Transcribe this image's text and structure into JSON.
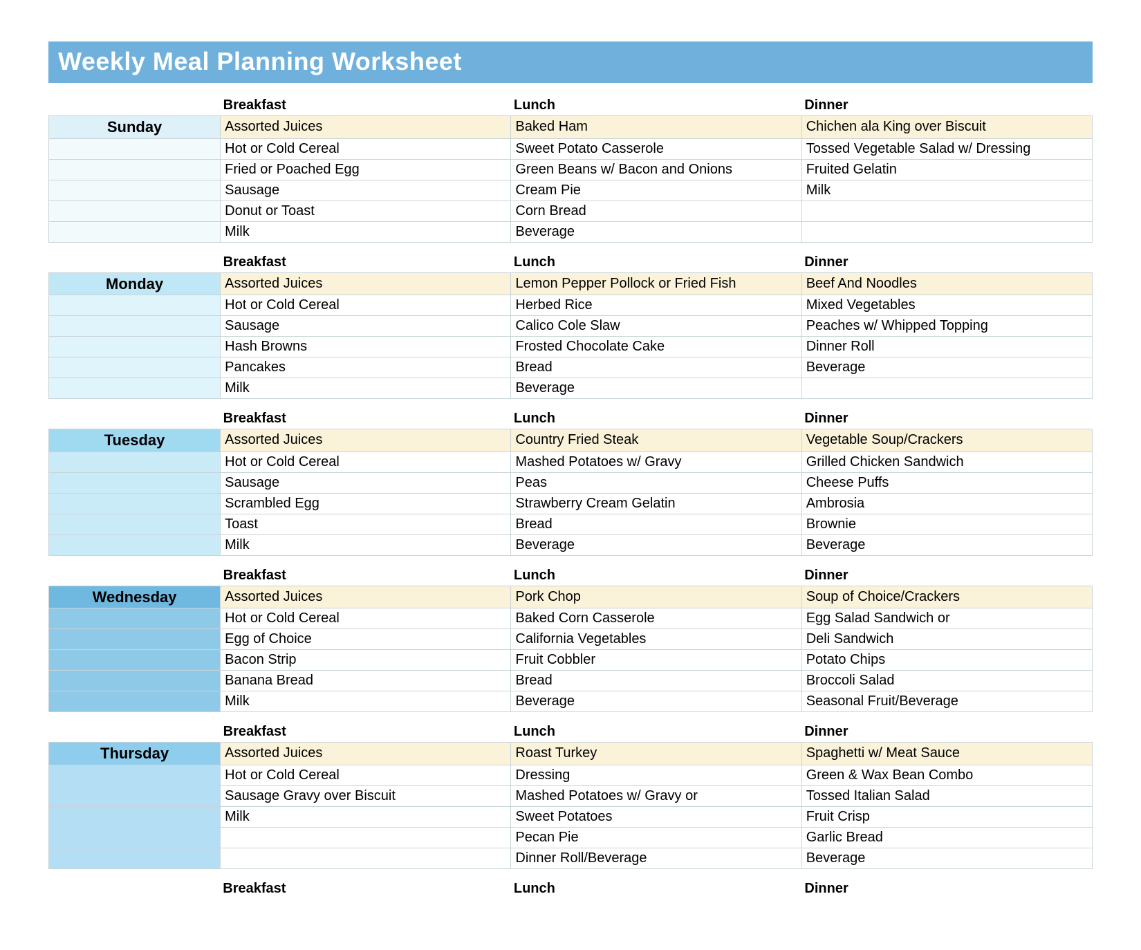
{
  "title": "Weekly Meal Planning Worksheet",
  "columns": [
    "Breakfast",
    "Lunch",
    "Dinner"
  ],
  "style": {
    "title_bg": "#6fb1dc",
    "title_fg": "#ffffff",
    "first_row_bg": "#faf2d9",
    "grid_color": "#c9d4d8",
    "day_colors": {
      "Sunday": {
        "name_bg": "#dff1f8",
        "side_bg": "#f2fafc"
      },
      "Monday": {
        "name_bg": "#bfe7f5",
        "side_bg": "#dff4fb"
      },
      "Tuesday": {
        "name_bg": "#9fdaf1",
        "side_bg": "#c9eaf7"
      },
      "Wednesday": {
        "name_bg": "#6fb9e0",
        "side_bg": "#8fc9e8"
      },
      "Thursday": {
        "name_bg": "#8fcdec",
        "side_bg": "#b4def3"
      }
    }
  },
  "days": [
    {
      "name": "Sunday",
      "rows": [
        [
          "Assorted Juices",
          "Baked Ham",
          "Chichen ala King over Biscuit"
        ],
        [
          "Hot or Cold Cereal",
          "Sweet Potato Casserole",
          "Tossed Vegetable Salad w/ Dressing"
        ],
        [
          "Fried or Poached Egg",
          "Green Beans w/ Bacon and Onions",
          "Fruited Gelatin"
        ],
        [
          "Sausage",
          "Cream Pie",
          "Milk"
        ],
        [
          "Donut or Toast",
          "Corn Bread",
          ""
        ],
        [
          "Milk",
          "Beverage",
          ""
        ]
      ]
    },
    {
      "name": "Monday",
      "rows": [
        [
          "Assorted Juices",
          "Lemon Pepper Pollock or Fried Fish",
          "Beef And Noodles"
        ],
        [
          "Hot or Cold Cereal",
          "Herbed Rice",
          "Mixed Vegetables"
        ],
        [
          "Sausage",
          "Calico Cole Slaw",
          "Peaches w/ Whipped Topping"
        ],
        [
          "Hash Browns",
          "Frosted Chocolate Cake",
          "Dinner Roll"
        ],
        [
          "Pancakes",
          "Bread",
          "Beverage"
        ],
        [
          "Milk",
          "Beverage",
          ""
        ]
      ]
    },
    {
      "name": "Tuesday",
      "rows": [
        [
          "Assorted Juices",
          "Country Fried Steak",
          "Vegetable Soup/Crackers"
        ],
        [
          "Hot or Cold Cereal",
          "Mashed Potatoes w/ Gravy",
          "Grilled Chicken Sandwich"
        ],
        [
          "Sausage",
          "Peas",
          "Cheese Puffs"
        ],
        [
          "Scrambled Egg",
          "Strawberry Cream Gelatin",
          "Ambrosia"
        ],
        [
          "Toast",
          "Bread",
          "Brownie"
        ],
        [
          "Milk",
          "Beverage",
          "Beverage"
        ]
      ]
    },
    {
      "name": "Wednesday",
      "rows": [
        [
          "Assorted Juices",
          "Pork Chop",
          "Soup of Choice/Crackers"
        ],
        [
          "Hot or Cold Cereal",
          "Baked Corn Casserole",
          "Egg Salad Sandwich or"
        ],
        [
          "Egg of Choice",
          "California Vegetables",
          "Deli Sandwich"
        ],
        [
          "Bacon Strip",
          "Fruit Cobbler",
          "Potato Chips"
        ],
        [
          "Banana Bread",
          "Bread",
          "Broccoli Salad"
        ],
        [
          "Milk",
          "Beverage",
          "Seasonal Fruit/Beverage"
        ]
      ]
    },
    {
      "name": "Thursday",
      "rows": [
        [
          "Assorted Juices",
          "Roast Turkey",
          "Spaghetti w/ Meat Sauce"
        ],
        [
          "Hot or Cold Cereal",
          "Dressing",
          "Green & Wax Bean Combo"
        ],
        [
          "Sausage Gravy over Biscuit",
          "Mashed Potatoes w/ Gravy or",
          "Tossed Italian Salad"
        ],
        [
          "Milk",
          "Sweet Potatoes",
          "Fruit Crisp"
        ],
        [
          "",
          "Pecan Pie",
          "Garlic Bread"
        ],
        [
          "",
          "Dinner Roll/Beverage",
          " Beverage"
        ]
      ]
    }
  ],
  "trailing_header": true
}
